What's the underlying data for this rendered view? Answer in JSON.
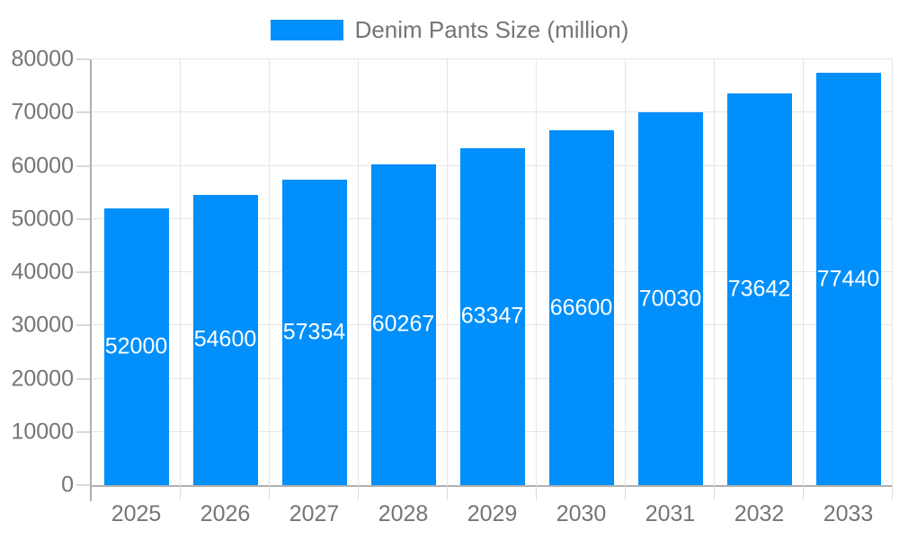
{
  "chart_data": {
    "type": "bar",
    "title": "",
    "legend": "Denim Pants Size (million)",
    "legend_position": "top-center",
    "categories": [
      "2025",
      "2026",
      "2027",
      "2028",
      "2029",
      "2030",
      "2031",
      "2032",
      "2033"
    ],
    "series": [
      {
        "name": "Denim Pants Size (million)",
        "values": [
          52000,
          54600,
          57354,
          60267,
          63347,
          66600,
          70030,
          73642,
          77440
        ]
      }
    ],
    "data_labels": [
      "52000",
      "54600",
      "57354",
      "60267",
      "63347",
      "66600",
      "70030",
      "73642",
      "77440"
    ],
    "xlabel": "",
    "ylabel": "",
    "ylim": [
      0,
      80000
    ],
    "ytick_step": 10000,
    "y_ticks": [
      "0",
      "10000",
      "20000",
      "30000",
      "40000",
      "50000",
      "60000",
      "70000",
      "80000"
    ],
    "grid": "on",
    "colors": {
      "bar": "#008FFB",
      "grid": "#e6e6e6",
      "axis": "#b0b0b0",
      "tick": "#d9d9d9",
      "axis_text": "#757575",
      "data_label_text": "#ffffff",
      "background": "#ffffff"
    }
  }
}
